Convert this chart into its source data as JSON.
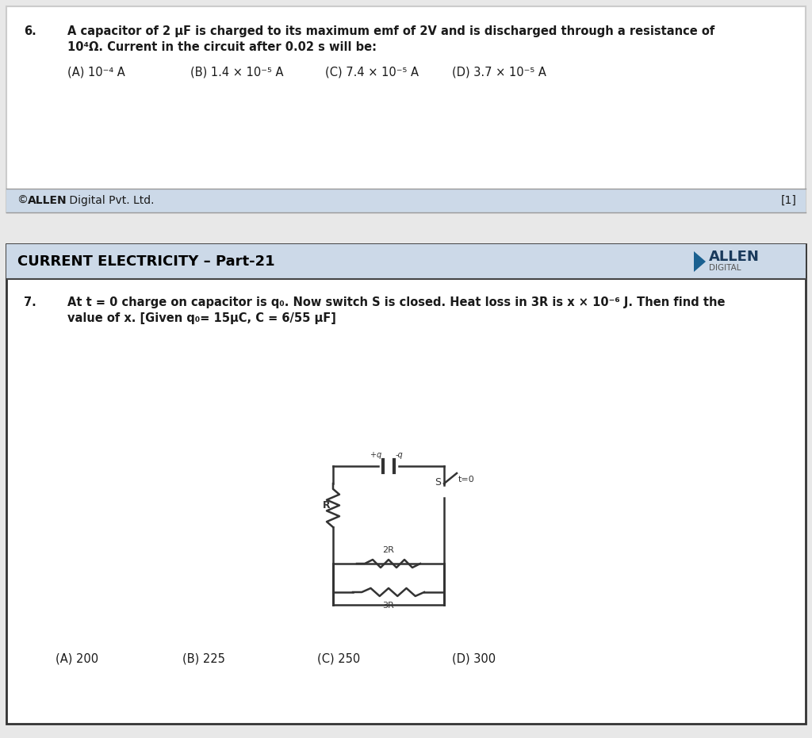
{
  "page_bg": "#e8e8e8",
  "top_section_bg": "#ffffff",
  "top_section_border": "#cccccc",
  "bottom_section_bg": "#ffffff",
  "bottom_section_border": "#333333",
  "header_bg": "#ccd9e8",
  "header_text": "CURRENT ELECTRICITY – Part-21",
  "header_text_color": "#000000",
  "header_fontsize": 13,
  "copyright_bg": "#ccd9e8",
  "copyright_text_normal": "© ",
  "copyright_text_bold": "ALLEN",
  "copyright_text_rest": " Digital Pvt. Ltd.",
  "copyright_right_text": "[1]",
  "q6_number": "6.",
  "q6_line1": "A capacitor of 2 μF is charged to its maximum emf of 2V and is discharged through a resistance of",
  "q6_line2": "10⁴Ω. Current in the circuit after 0.02 s will be:",
  "q6_options": [
    "(A) 10⁻⁴ A",
    "(B) 1.4 × 10⁻⁵ A",
    "(C) 7.4 × 10⁻⁵ A",
    "(D) 3.7 × 10⁻⁵ A"
  ],
  "q7_number": "7.",
  "q7_line1": "At t = 0 charge on capacitor is q₀. Now switch S is closed. Heat loss in 3R is x × 10⁻⁶ J. Then find the",
  "q7_line2": "value of x. [Given q₀= 15μC, C = 6/55 μF]",
  "q7_options": [
    "(A) 200",
    "(B) 225",
    "(C) 250",
    "(D) 300"
  ],
  "text_color": "#1a1a1a",
  "circuit_color": "#333333",
  "body_fontsize": 10.5,
  "option_fontsize": 10.5,
  "allen_color": "#1a3a5c",
  "digital_color": "#555555",
  "triangle_color": "#1a6090"
}
